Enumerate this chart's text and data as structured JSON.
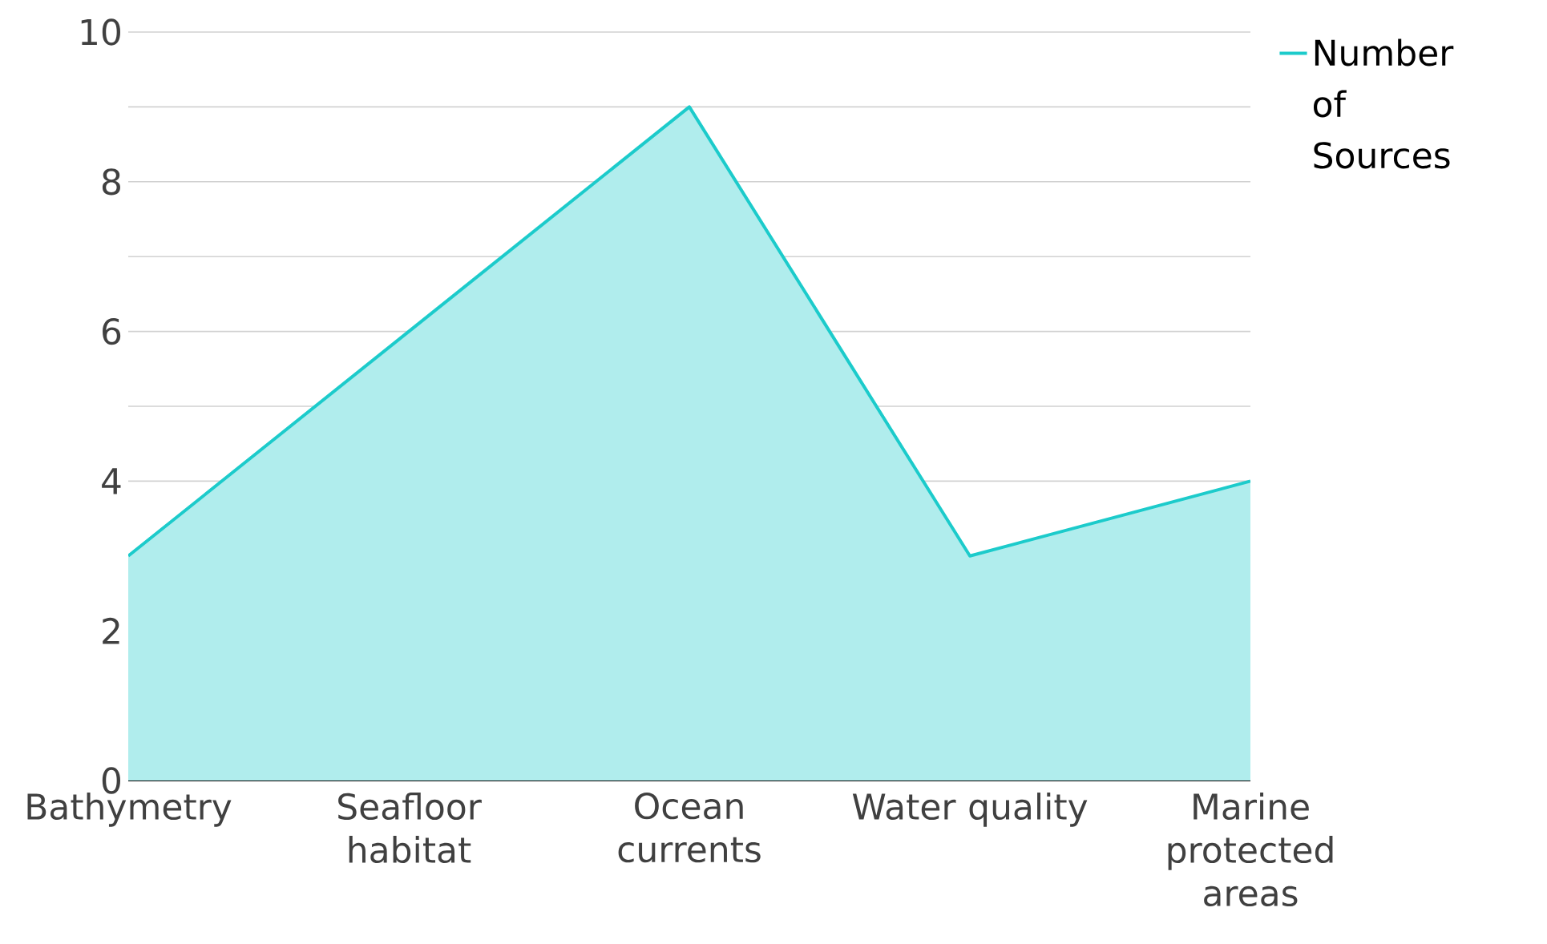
{
  "chart_data": {
    "type": "area",
    "categories": [
      "Bathymetry",
      "Seafloor habitat",
      "Ocean currents",
      "Water quality",
      "Marine protected areas"
    ],
    "series": [
      {
        "name": "Number of Sources",
        "color": "#1ccbcb",
        "values": [
          3,
          6,
          9,
          3,
          4
        ]
      }
    ],
    "ylim": [
      0,
      10
    ],
    "yticks": [
      0,
      {
        "value": 1,
        "label": null
      },
      2,
      {
        "value": 3,
        "label": null
      },
      4,
      {
        "value": 5,
        "label": null
      },
      6,
      {
        "value": 7,
        "label": null
      },
      8,
      {
        "value": 9,
        "label": null
      },
      10
    ],
    "grid": "y",
    "legend": "top right"
  }
}
